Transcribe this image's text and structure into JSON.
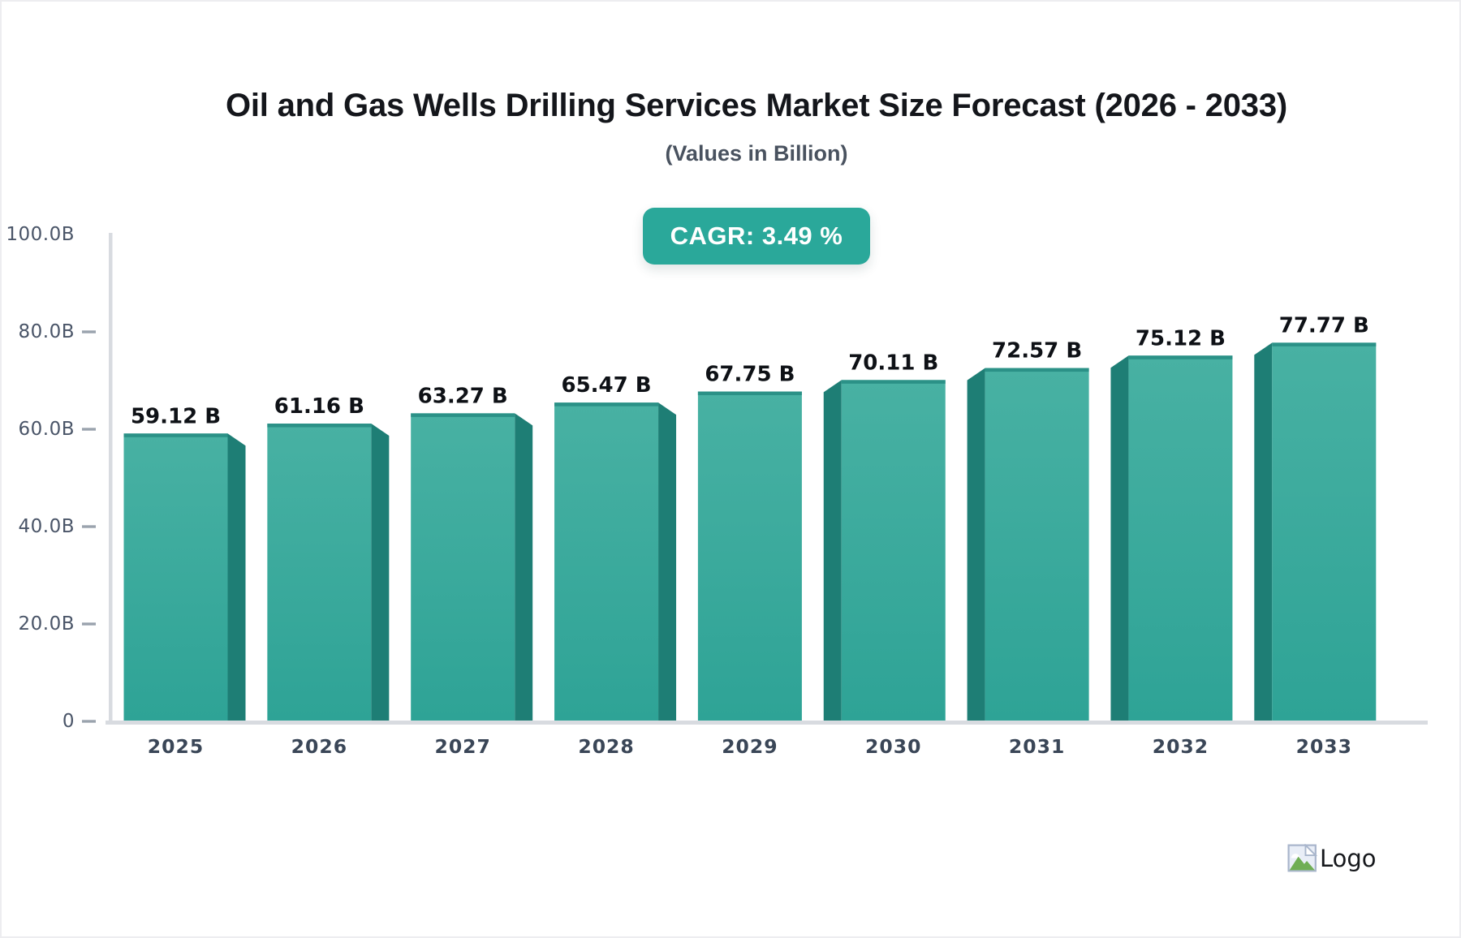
{
  "page": {
    "title": "Oil and Gas Wells Drilling Services Market Size Forecast (2026 - 2033)",
    "subtitle": "(Values in Billion)",
    "cagr_badge_label": "CAGR: 3.49 %",
    "logo_alt_text": "Logo",
    "colors": {
      "accent_teal": "#2AA89A",
      "badge_text": "#FFFFFF",
      "bar_face_top": "#48B1A3",
      "bar_face_bottom": "#2EA396",
      "bar_side": "#1E7E75",
      "bar_top_edge": "#2B9187",
      "axis_line": "#D8DBE0",
      "tick_dash": "#9AA3AD",
      "tick_text": "#4A5568",
      "year_text": "#3A4657",
      "value_text": "#0E1116"
    }
  },
  "chart_data": {
    "type": "bar",
    "title": "Oil and Gas Wells Drilling Services Market Size Forecast (2026 - 2033)",
    "subtitle": "(Values in Billion)",
    "cagr_label": "CAGR: 3.49 %",
    "categories": [
      "2025",
      "2026",
      "2027",
      "2028",
      "2029",
      "2030",
      "2031",
      "2032",
      "2033"
    ],
    "values": [
      59.12,
      61.16,
      63.27,
      65.47,
      67.75,
      70.11,
      72.57,
      75.12,
      77.77
    ],
    "value_labels": [
      "59.12 B",
      "61.16 B",
      "63.27 B",
      "65.47 B",
      "67.75 B",
      "70.11 B",
      "72.57 B",
      "75.12 B",
      "77.77 B"
    ],
    "ylim": [
      0,
      100
    ],
    "y_ticks": [
      {
        "label": "100.0B",
        "value": 100
      },
      {
        "label": "80.0B",
        "value": 80
      },
      {
        "label": "60.0B",
        "value": 60
      },
      {
        "label": "40.0B",
        "value": 40
      },
      {
        "label": "20.0B",
        "value": 20
      },
      {
        "label": "0",
        "value": 0
      }
    ],
    "grid": false,
    "legend": false,
    "style": "3d-bars-perspective-toward-center"
  }
}
